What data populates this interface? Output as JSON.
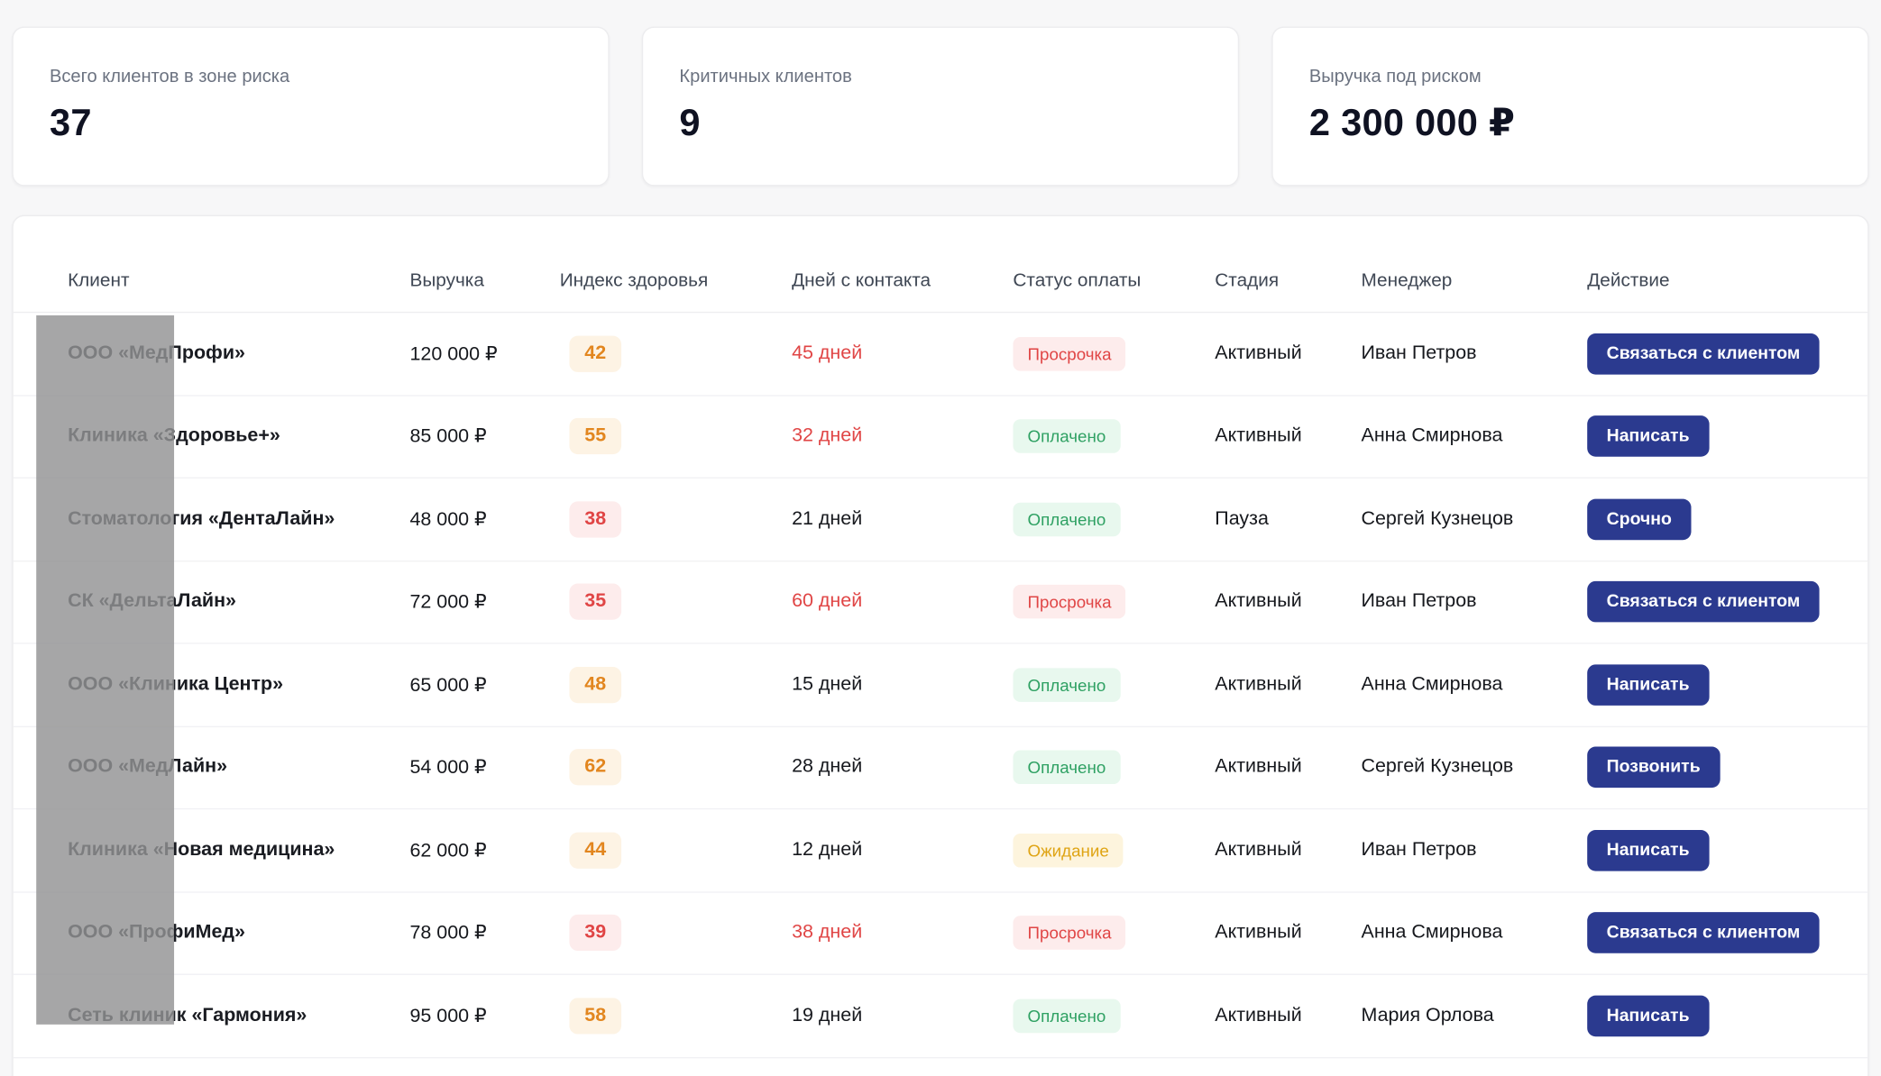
{
  "stats": [
    {
      "label": "Всего клиентов в зоне риска",
      "value": "37"
    },
    {
      "label": "Критичных клиентов",
      "value": "9"
    },
    {
      "label": "Выручка под риском",
      "value": "2 300 000 ₽"
    }
  ],
  "table": {
    "columns": [
      "Клиент",
      "Выручка",
      "Индекс здоровья",
      "Дней с контакта",
      "Статус оплаты",
      "Стадия",
      "Менеджер",
      "Действие"
    ],
    "rows": [
      {
        "client": "ООО «МедПрофи»",
        "revenue": "120 000 ₽",
        "health": "42",
        "health_level": "warn",
        "days": "45 дней",
        "days_alert": true,
        "payment": "Просрочка",
        "payment_type": "overdue",
        "stage": "Активный",
        "manager": "Иван Петров",
        "action": "Связаться с клиентом"
      },
      {
        "client": "Клиника «Здоровье+»",
        "revenue": "85 000 ₽",
        "health": "55",
        "health_level": "warn",
        "days": "32 дней",
        "days_alert": true,
        "payment": "Оплачено",
        "payment_type": "paid",
        "stage": "Активный",
        "manager": "Анна Смирнова",
        "action": "Написать"
      },
      {
        "client": "Стоматология «ДентаЛайн»",
        "revenue": "48 000 ₽",
        "health": "38",
        "health_level": "danger",
        "days": "21 дней",
        "days_alert": false,
        "payment": "Оплачено",
        "payment_type": "paid",
        "stage": "Пауза",
        "manager": "Сергей Кузнецов",
        "action": "Срочно"
      },
      {
        "client": "СК «ДельтаЛайн»",
        "revenue": "72 000 ₽",
        "health": "35",
        "health_level": "danger",
        "days": "60 дней",
        "days_alert": true,
        "payment": "Просрочка",
        "payment_type": "overdue",
        "stage": "Активный",
        "manager": "Иван Петров",
        "action": "Связаться с клиентом"
      },
      {
        "client": "ООО «Клиника Центр»",
        "revenue": "65 000 ₽",
        "health": "48",
        "health_level": "warn",
        "days": "15 дней",
        "days_alert": false,
        "payment": "Оплачено",
        "payment_type": "paid",
        "stage": "Активный",
        "manager": "Анна Смирнова",
        "action": "Написать"
      },
      {
        "client": "ООО «МедЛайн»",
        "revenue": "54 000 ₽",
        "health": "62",
        "health_level": "warn",
        "days": "28 дней",
        "days_alert": false,
        "payment": "Оплачено",
        "payment_type": "paid",
        "stage": "Активный",
        "manager": "Сергей Кузнецов",
        "action": "Позвонить"
      },
      {
        "client": "Клиника «Новая медицина»",
        "revenue": "62 000 ₽",
        "health": "44",
        "health_level": "warn",
        "days": "12 дней",
        "days_alert": false,
        "payment": "Ожидание",
        "payment_type": "waiting",
        "stage": "Активный",
        "manager": "Иван Петров",
        "action": "Написать"
      },
      {
        "client": "ООО «ПрофиМед»",
        "revenue": "78 000 ₽",
        "health": "39",
        "health_level": "danger",
        "days": "38 дней",
        "days_alert": true,
        "payment": "Просрочка",
        "payment_type": "overdue",
        "stage": "Активный",
        "manager": "Анна Смирнова",
        "action": "Связаться с клиентом"
      },
      {
        "client": "Сеть клиник «Гармония»",
        "revenue": "95 000 ₽",
        "health": "58",
        "health_level": "warn",
        "days": "19 дней",
        "days_alert": false,
        "payment": "Оплачено",
        "payment_type": "paid",
        "stage": "Активный",
        "manager": "Мария Орлова",
        "action": "Написать"
      }
    ]
  },
  "colors": {
    "accent": "#2b3a8f",
    "danger": "#e04545",
    "success": "#2fa163",
    "warning": "#dfa414"
  }
}
